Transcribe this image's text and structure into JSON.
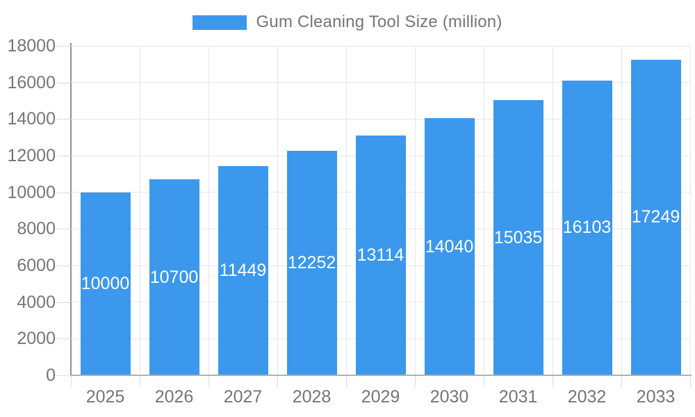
{
  "legend": {
    "label": "Gum Cleaning Tool Size (million)"
  },
  "chart_data": {
    "type": "bar",
    "title": "Gum Cleaning Tool Size (million)",
    "xlabel": "",
    "ylabel": "",
    "categories": [
      "2025",
      "2026",
      "2027",
      "2028",
      "2029",
      "2030",
      "2031",
      "2032",
      "2033"
    ],
    "values": [
      10000,
      10700,
      11449,
      12252,
      13114,
      14040,
      15035,
      16103,
      17249
    ],
    "yticks": [
      0,
      2000,
      4000,
      6000,
      8000,
      10000,
      12000,
      14000,
      16000,
      18000
    ],
    "ylim": [
      0,
      18000
    ],
    "legend_position": "top",
    "grid": true,
    "bar_color": "#3b98ec",
    "bar_label_color": "#ffffff",
    "text_color": "#757575",
    "grid_color": "#e6e6e6",
    "axis_color": "#8f8f8f"
  }
}
